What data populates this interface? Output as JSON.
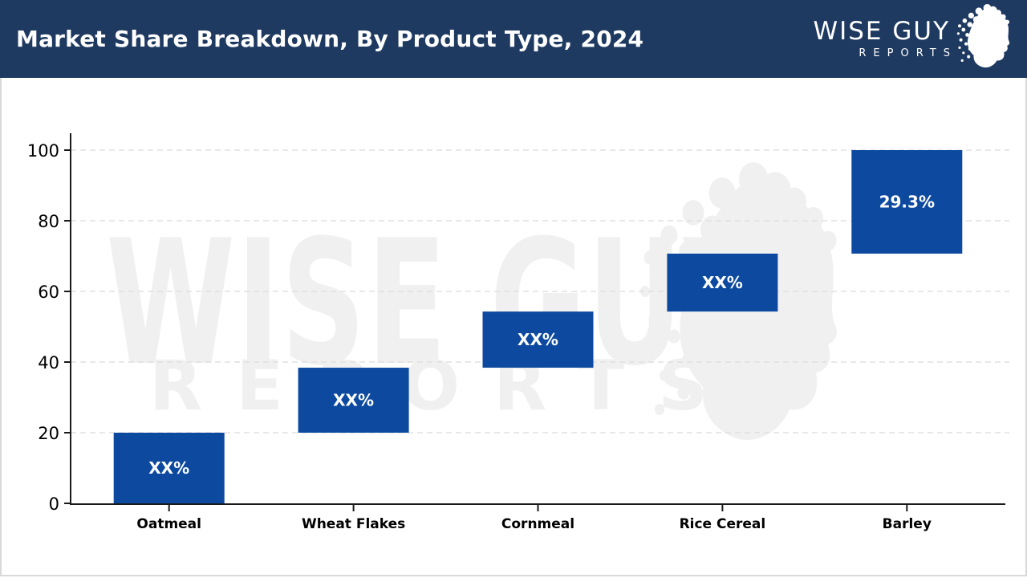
{
  "header": {
    "title": "Market Share Breakdown, By Product Type, 2024",
    "bg_color": "#1f3a61",
    "logo": {
      "wordmark": "WISE GUY",
      "subtext": "REPORTS"
    }
  },
  "watermark": {
    "wordmark": "WISE GUY",
    "subtext": "REPORTS"
  },
  "chart_data": {
    "type": "bar",
    "subtype": "floating-waterfall",
    "title": "Market Share Breakdown, By Product Type, 2024",
    "categories": [
      "Oatmeal",
      "Wheat Flakes",
      "Cornmeal",
      "Rice Cereal",
      "Barley"
    ],
    "segments": [
      {
        "category": "Oatmeal",
        "start": 0,
        "end": 20,
        "value": 20,
        "label": "XX%"
      },
      {
        "category": "Wheat Flakes",
        "start": 20,
        "end": 38.4,
        "value": 18.4,
        "label": "XX%"
      },
      {
        "category": "Cornmeal",
        "start": 38.4,
        "end": 54.3,
        "value": 15.9,
        "label": "XX%"
      },
      {
        "category": "Rice Cereal",
        "start": 54.3,
        "end": 70.7,
        "value": 16.4,
        "label": "XX%"
      },
      {
        "category": "Barley",
        "start": 70.7,
        "end": 100,
        "value": 29.3,
        "label": "29.3%"
      }
    ],
    "yticks": [
      0,
      20,
      40,
      60,
      80,
      100
    ],
    "ylim": [
      0,
      104
    ],
    "xlabel": "",
    "ylabel": "",
    "grid": "horizontal-dashed",
    "legend": "none",
    "bar_color": "#0d4a9f",
    "bar_label_color": "#ffffff",
    "axis_color": "#1a1a1a",
    "gridline_color": "#e0e0e0"
  }
}
